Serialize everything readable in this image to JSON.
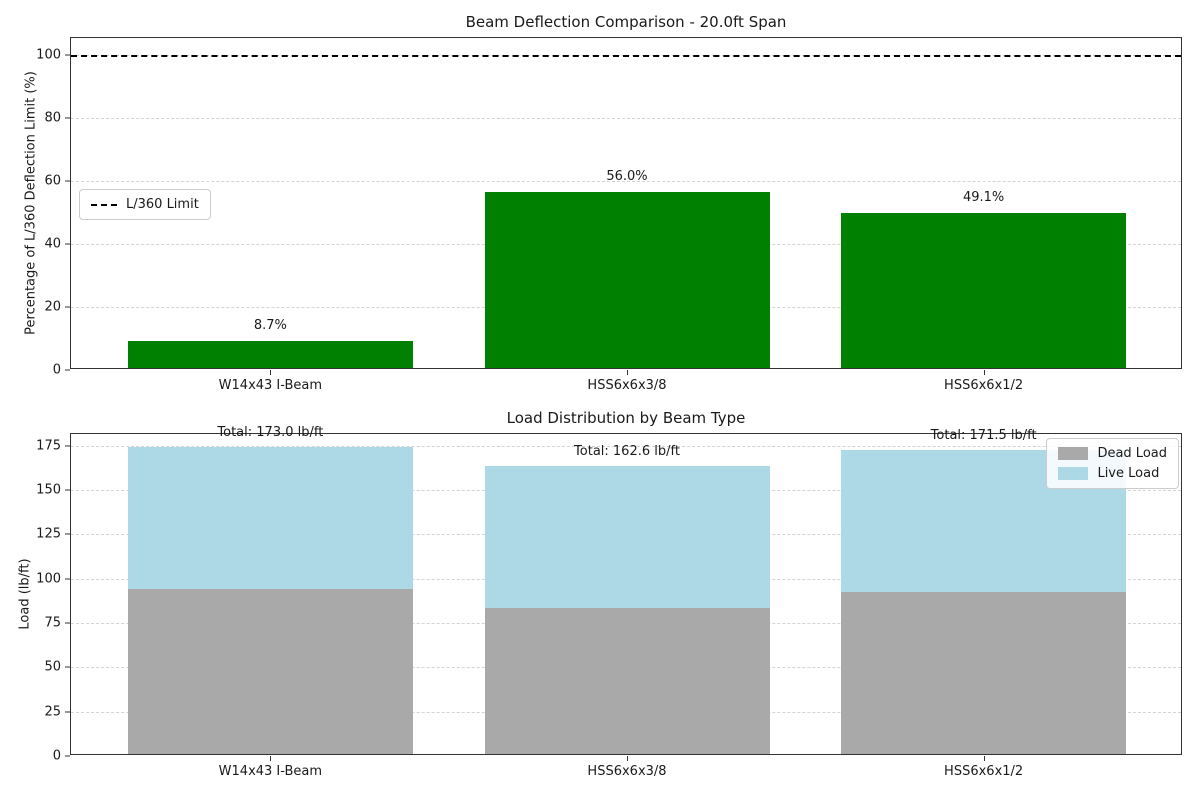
{
  "chart_data": [
    {
      "type": "bar",
      "title": "Beam Deflection Comparison - 20.0ft Span",
      "ylabel": "Percentage of L/360 Deflection Limit (%)",
      "categories": [
        "W14x43 I-Beam",
        "HSS6x6x3/8",
        "HSS6x6x1/2"
      ],
      "values": [
        8.7,
        56.0,
        49.1
      ],
      "bar_labels": [
        "8.7%",
        "56.0%",
        "49.1%"
      ],
      "bar_color": "#008000",
      "ylim": [
        0,
        105.4
      ],
      "yticks": [
        0,
        20,
        40,
        60,
        80,
        100
      ],
      "grid": true,
      "reference_line": {
        "value": 100,
        "label": "L/360 Limit",
        "color": "#000000",
        "style": "dashed"
      },
      "legend_position": "center-left"
    },
    {
      "type": "stacked-bar",
      "title": "Load Distribution by Beam Type",
      "ylabel": "Load (lb/ft)",
      "categories": [
        "W14x43 I-Beam",
        "HSS6x6x3/8",
        "HSS6x6x1/2"
      ],
      "series": [
        {
          "name": "Dead Load",
          "color": "#a9a9a9",
          "values": [
            93.0,
            82.6,
            91.5
          ]
        },
        {
          "name": "Live Load",
          "color": "#add8e6",
          "values": [
            80.0,
            80.0,
            80.0
          ]
        }
      ],
      "totals": [
        173.0,
        162.6,
        171.5
      ],
      "total_labels": [
        "Total: 173.0 lb/ft",
        "Total: 162.6 lb/ft",
        "Total: 171.5 lb/ft"
      ],
      "ylim": [
        0,
        181.7
      ],
      "yticks": [
        0,
        25,
        50,
        75,
        100,
        125,
        150,
        175
      ],
      "grid": true,
      "legend_position": "top-right"
    }
  ]
}
